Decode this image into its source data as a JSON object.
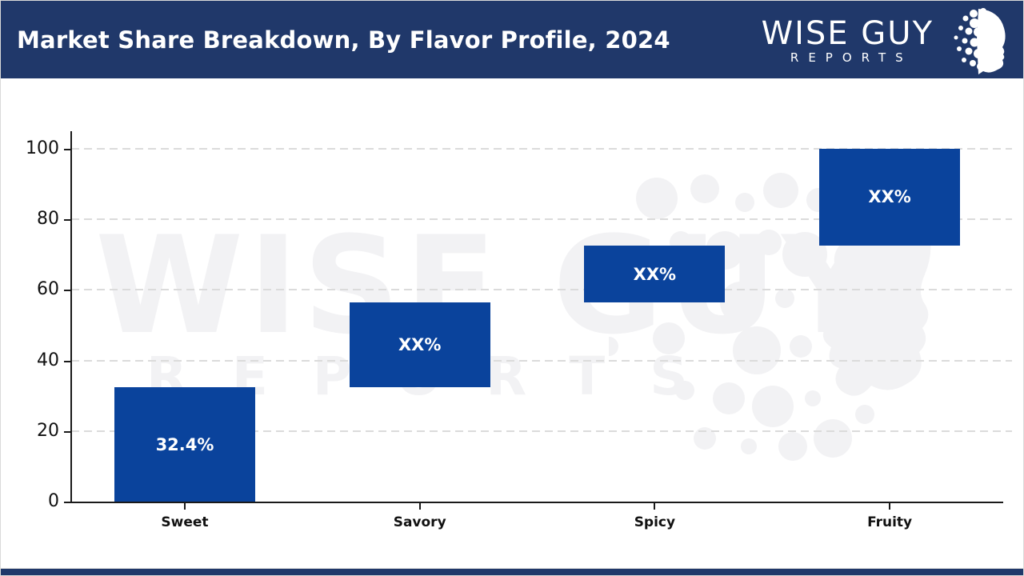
{
  "header": {
    "title": "Market Share Breakdown, By Flavor Profile, 2024",
    "logo": {
      "line1": "WISE GUY",
      "line2": "REPORTS"
    },
    "bg_color": "#20386A",
    "text_color": "#ffffff"
  },
  "watermark": {
    "line1": "WISE GUY",
    "line2": "REPORTS"
  },
  "chart_data": {
    "type": "waterfall",
    "title": "Market Share Breakdown, By Flavor Profile, 2024",
    "categories": [
      "Sweet",
      "Savory",
      "Spicy",
      "Fruity"
    ],
    "segments": [
      {
        "category": "Sweet",
        "start": 0,
        "end": 32.4,
        "label": "32.4%"
      },
      {
        "category": "Savory",
        "start": 32.4,
        "end": 56.4,
        "label": "XX%"
      },
      {
        "category": "Spicy",
        "start": 56.4,
        "end": 72.6,
        "label": "XX%"
      },
      {
        "category": "Fruity",
        "start": 72.6,
        "end": 100,
        "label": "XX%"
      }
    ],
    "y_ticks": [
      0,
      20,
      40,
      60,
      80,
      100
    ],
    "ylim": [
      0,
      104
    ],
    "xlabel": "",
    "ylabel": "",
    "grid": "horizontal-dashed",
    "legend": "none",
    "bar_color": "#0A439C",
    "bar_label_color": "#ffffff",
    "gridline_color": "#dbdbdb",
    "axis_color": "#1a1a1a"
  },
  "footer": {
    "bg_color": "#20386A"
  }
}
